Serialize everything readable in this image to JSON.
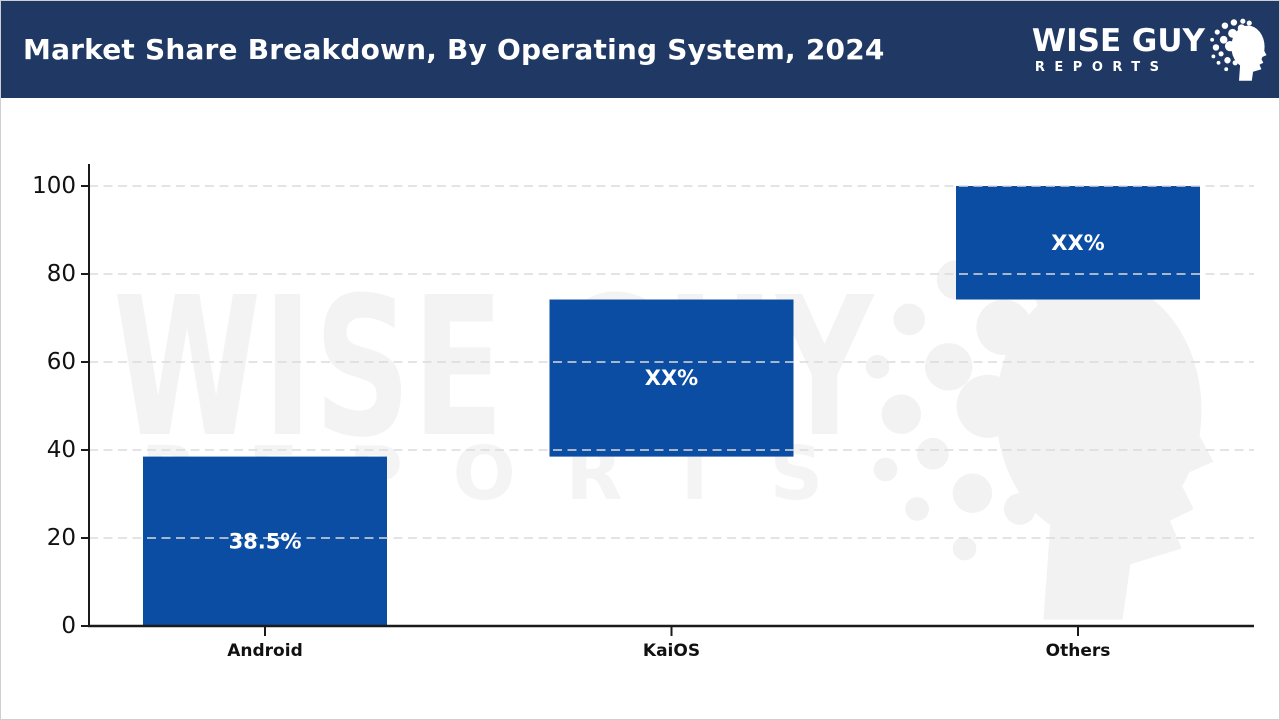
{
  "header": {
    "title": "Market Share Breakdown, By Operating System, 2024",
    "logo": {
      "name": "WISE GUY",
      "tagline": "REPORTS"
    }
  },
  "watermark": {
    "text": "WISE GUY",
    "tagline": "REPORTS"
  },
  "chart_data": {
    "type": "bar",
    "subtype": "waterfall",
    "title": "Market Share Breakdown, By Operating System, 2024",
    "categories": [
      "Android",
      "KaiOS",
      "Others"
    ],
    "series": [
      {
        "name": "Market share (%)",
        "segments": [
          {
            "category": "Android",
            "start": 0,
            "end": 38.5,
            "label": "38.5%"
          },
          {
            "category": "KaiOS",
            "start": 38.5,
            "end": 74.2,
            "label": "XX%"
          },
          {
            "category": "Others",
            "start": 74.2,
            "end": 100,
            "label": "XX%"
          }
        ]
      }
    ],
    "xlabel": "",
    "ylabel": "",
    "ylim": [
      0,
      105
    ],
    "yticks": [
      0,
      20,
      40,
      60,
      80,
      100
    ],
    "grid": "horizontal dashed gridlines, drawn above bars",
    "legend": "none",
    "colors": {
      "bar": "#0b4da2",
      "bar_label": "#ffffff",
      "grid": "#dbdbdb",
      "axis": "#1a1a1a",
      "tick_label": "#111111",
      "header_bg": "#1f3864",
      "watermark": "#f3f3f3"
    }
  }
}
